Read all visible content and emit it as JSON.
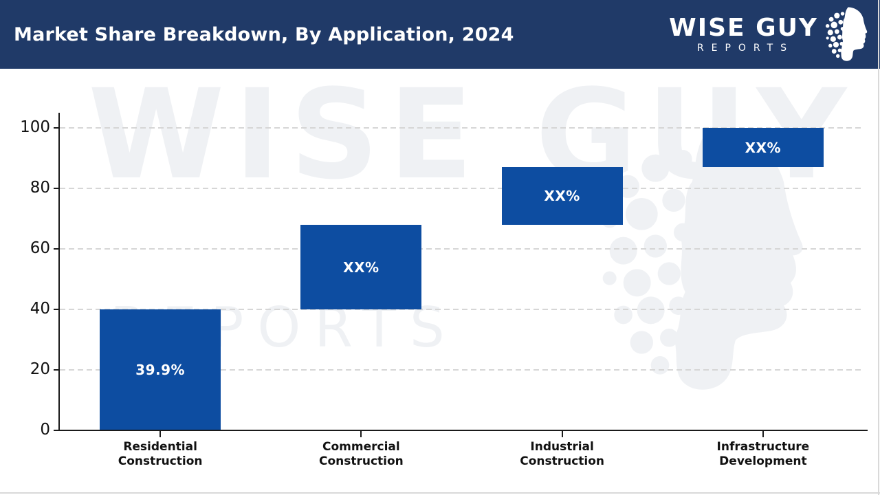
{
  "header": {
    "title": "Market Share Breakdown, By Application, 2024",
    "logo": {
      "line1": "WISE GUY",
      "line2": "REPORTS"
    }
  },
  "watermark": {
    "line1": "WISE GUY",
    "line2": "REPORTS"
  },
  "chart_data": {
    "type": "bar",
    "subtype": "waterfall",
    "title": "Market Share Breakdown, By Application, 2024",
    "categories": [
      "Residential Construction",
      "Commercial Construction",
      "Industrial Construction",
      "Infrastructure Development"
    ],
    "segments": [
      {
        "category": "Residential Construction",
        "start": 0,
        "end": 39.9,
        "label": "39.9%"
      },
      {
        "category": "Commercial Construction",
        "start": 39.9,
        "end": 68,
        "label": "XX%"
      },
      {
        "category": "Industrial Construction",
        "start": 68,
        "end": 87,
        "label": "XX%"
      },
      {
        "category": "Infrastructure Development",
        "start": 87,
        "end": 100,
        "label": "XX%"
      }
    ],
    "yticks": [
      0,
      20,
      40,
      60,
      80,
      100
    ],
    "ylim": [
      0,
      100
    ],
    "xlabel": "",
    "ylabel": "",
    "grid": "horizontal-dashed",
    "legend": "none",
    "bar_color": "#0d4da1",
    "bar_label_color": "#ffffff"
  },
  "colors": {
    "header_bg": "#203a68",
    "bar": "#0d4da1",
    "grid": "#d6d6d6",
    "axis": "#1a1a1a",
    "watermark": "#eff1f4"
  }
}
